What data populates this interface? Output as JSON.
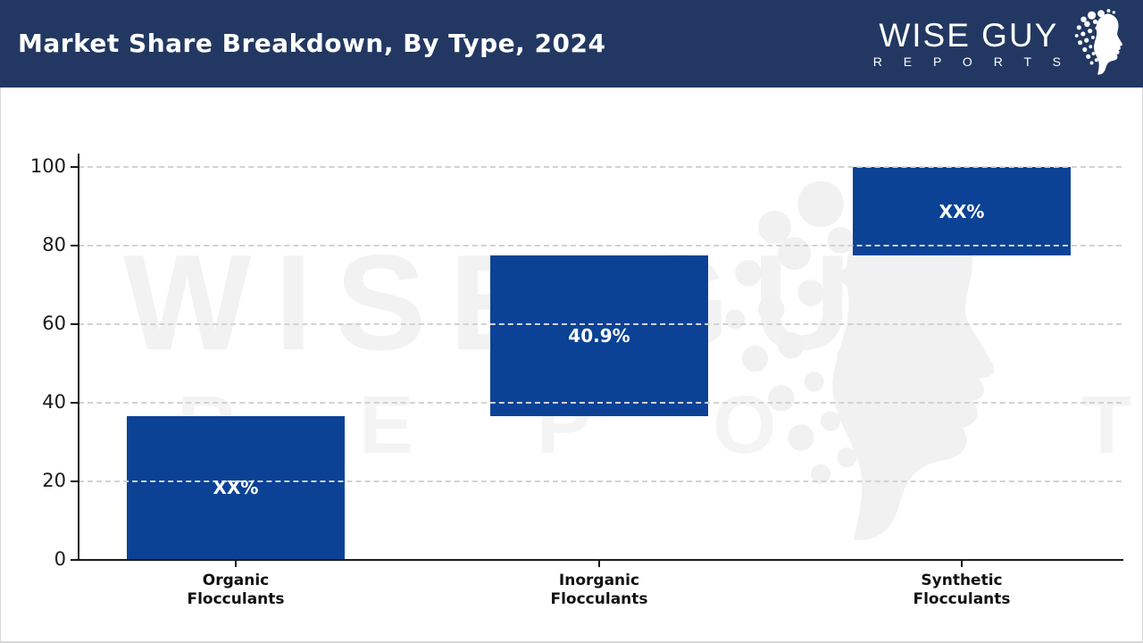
{
  "header": {
    "title": "Market Share Breakdown, By Type, 2024",
    "background_color": "#223862",
    "logo": {
      "line1": "WISE GUY",
      "line2": "R E P O R T S"
    }
  },
  "watermark": {
    "line1": "WISE GUY",
    "line2": "R E P O R T S"
  },
  "chart_data": {
    "type": "bar",
    "subtype": "floating-waterfall",
    "title": "Market Share Breakdown, By Type, 2024",
    "categories": [
      [
        "Organic",
        "Flocculants"
      ],
      [
        "Inorganic",
        "Flocculants"
      ],
      [
        "Synthetic",
        "Flocculants"
      ]
    ],
    "series": [
      {
        "name": "Market Share %",
        "base_values": [
          0,
          36.6,
          77.5
        ],
        "top_values": [
          36.6,
          77.5,
          100
        ],
        "bar_labels": [
          "XX%",
          "40.9%",
          "XX%"
        ]
      }
    ],
    "xlabel": "",
    "ylabel": "",
    "ylim": [
      0,
      100
    ],
    "yticks": [
      0,
      20,
      40,
      60,
      80,
      100
    ],
    "grid": "horizontal-dashed",
    "legend": "none",
    "bar_color": "#0b4296",
    "bar_label_color": "#ffffff"
  }
}
